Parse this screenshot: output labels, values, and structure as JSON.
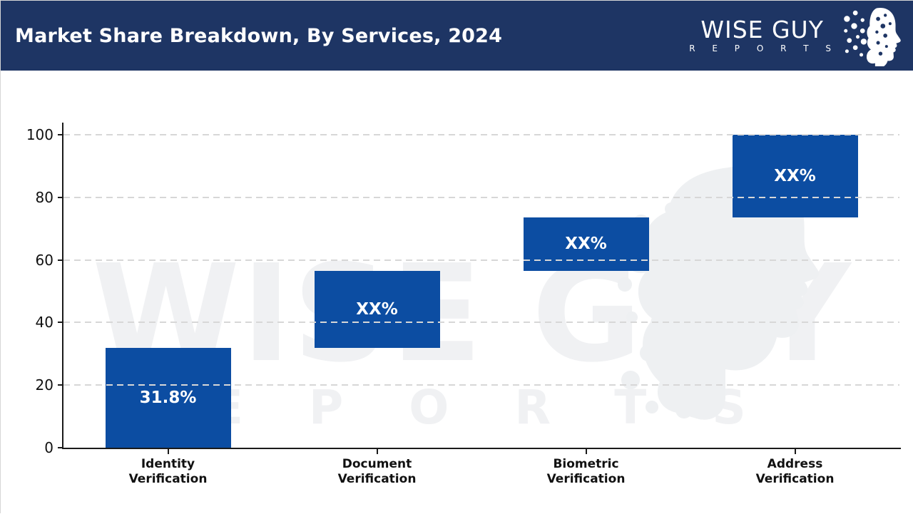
{
  "header": {
    "title": "Market Share Breakdown, By Services, 2024",
    "bg_color": "#1e3564",
    "logo": {
      "name": "WISE GUY",
      "sub": "R E P O R T S"
    }
  },
  "watermark": {
    "line1": "WISE GUY",
    "line2": "REPORTS",
    "color": "#f0f1f3"
  },
  "chart_data": {
    "type": "bar",
    "subtype": "waterfall",
    "title": "Market Share Breakdown, By Services, 2024",
    "categories": [
      "Identity\nVerification",
      "Document\nVerification",
      "Biometric\nVerification",
      "Address\nVerification"
    ],
    "segments": [
      {
        "category": "Identity Verification",
        "start": 0,
        "end": 31.8,
        "label": "31.8%"
      },
      {
        "category": "Document Verification",
        "start": 31.8,
        "end": 56.5,
        "label": "XX%"
      },
      {
        "category": "Biometric Verification",
        "start": 56.5,
        "end": 73.6,
        "label": "XX%"
      },
      {
        "category": "Address Verification",
        "start": 73.6,
        "end": 100,
        "label": "XX%"
      }
    ],
    "ylim": [
      0,
      100
    ],
    "yticks": [
      0,
      20,
      40,
      60,
      80,
      100
    ],
    "grid": "horizontal-dashed",
    "legend": "none",
    "colors": {
      "bar": "#0c4da2",
      "bar_label": "#ffffff",
      "axis": "#1a1a1a",
      "gridline": "#d7d7d7",
      "tick_label": "#111111"
    }
  }
}
